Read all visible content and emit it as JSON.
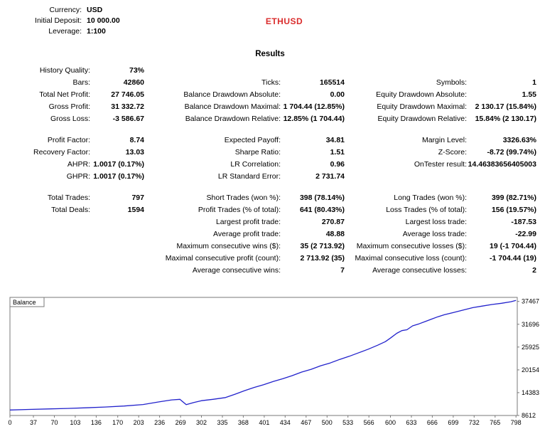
{
  "header": {
    "currency_label": "Currency:",
    "currency_value": "USD",
    "deposit_label": "Initial Deposit:",
    "deposit_value": "10 000.00",
    "leverage_label": "Leverage:",
    "leverage_value": "1:100",
    "symbol": "ETHUSD"
  },
  "results_title": "Results",
  "colors": {
    "symbol_red": "#da2c2c",
    "line_blue": "#2222cc"
  },
  "stats": {
    "rows": [
      [
        "History Quality:",
        "73%",
        "",
        "",
        "",
        ""
      ],
      [
        "Bars:",
        "42860",
        "Ticks:",
        "165514",
        "Symbols:",
        "1"
      ],
      [
        "Total Net Profit:",
        "27 746.05",
        "Balance Drawdown Absolute:",
        "0.00",
        "Equity Drawdown Absolute:",
        "1.55"
      ],
      [
        "Gross Profit:",
        "31 332.72",
        "Balance Drawdown Maximal:",
        "1 704.44 (12.85%)",
        "Equity Drawdown Maximal:",
        "2 130.17 (15.84%)"
      ],
      [
        "Gross Loss:",
        "-3 586.67",
        "Balance Drawdown Relative:",
        "12.85% (1 704.44)",
        "Equity Drawdown Relative:",
        "15.84% (2 130.17)"
      ],
      [
        "",
        "",
        "",
        "",
        "",
        ""
      ],
      [
        "Profit Factor:",
        "8.74",
        "Expected Payoff:",
        "34.81",
        "Margin Level:",
        "3326.63%"
      ],
      [
        "Recovery Factor:",
        "13.03",
        "Sharpe Ratio:",
        "1.51",
        "Z-Score:",
        "-8.72 (99.74%)"
      ],
      [
        "AHPR:",
        "1.0017 (0.17%)",
        "LR Correlation:",
        "0.96",
        "OnTester result:",
        "14.46383656405003"
      ],
      [
        "GHPR:",
        "1.0017 (0.17%)",
        "LR Standard Error:",
        "2 731.74",
        "",
        ""
      ],
      [
        "",
        "",
        "",
        "",
        "",
        ""
      ],
      [
        "Total Trades:",
        "797",
        "Short Trades (won %):",
        "398 (78.14%)",
        "Long Trades (won %):",
        "399 (82.71%)"
      ],
      [
        "Total Deals:",
        "1594",
        "Profit Trades (% of total):",
        "641 (80.43%)",
        "Loss Trades (% of total):",
        "156 (19.57%)"
      ],
      [
        "",
        "",
        "Largest profit trade:",
        "270.87",
        "Largest loss trade:",
        "-187.53"
      ],
      [
        "",
        "",
        "Average profit trade:",
        "48.88",
        "Average loss trade:",
        "-22.99"
      ],
      [
        "",
        "",
        "Maximum consecutive wins ($):",
        "35 (2 713.92)",
        "Maximum consecutive losses ($):",
        "19 (-1 704.44)"
      ],
      [
        "",
        "",
        "Maximal consecutive profit (count):",
        "2 713.92 (35)",
        "Maximal consecutive loss (count):",
        "-1 704.44 (19)"
      ],
      [
        "",
        "",
        "Average consecutive wins:",
        "7",
        "Average consecutive losses:",
        "2"
      ]
    ]
  },
  "chart_data": {
    "type": "line",
    "title": "Balance",
    "xlabel": "",
    "ylabel": "",
    "legend": false,
    "grid": false,
    "xlim": [
      0,
      800
    ],
    "ylim": [
      8612,
      38500
    ],
    "x_ticks": [
      0,
      37,
      70,
      103,
      136,
      170,
      203,
      236,
      269,
      302,
      335,
      368,
      401,
      434,
      467,
      500,
      533,
      566,
      600,
      633,
      666,
      699,
      732,
      765,
      798
    ],
    "y_ticks": [
      8612,
      14383,
      20154,
      25925,
      31696,
      37467
    ],
    "series": [
      {
        "name": "Balance",
        "color": "#2222cc",
        "points": [
          [
            0,
            10000
          ],
          [
            30,
            10140
          ],
          [
            60,
            10270
          ],
          [
            90,
            10400
          ],
          [
            120,
            10560
          ],
          [
            150,
            10760
          ],
          [
            180,
            11000
          ],
          [
            210,
            11380
          ],
          [
            235,
            12050
          ],
          [
            255,
            12550
          ],
          [
            268,
            12700
          ],
          [
            278,
            11350
          ],
          [
            290,
            11900
          ],
          [
            302,
            12350
          ],
          [
            320,
            12700
          ],
          [
            340,
            13150
          ],
          [
            355,
            14000
          ],
          [
            370,
            14900
          ],
          [
            385,
            15700
          ],
          [
            400,
            16400
          ],
          [
            415,
            17200
          ],
          [
            430,
            17900
          ],
          [
            445,
            18700
          ],
          [
            460,
            19600
          ],
          [
            475,
            20300
          ],
          [
            490,
            21200
          ],
          [
            505,
            21900
          ],
          [
            520,
            22800
          ],
          [
            535,
            23600
          ],
          [
            550,
            24500
          ],
          [
            565,
            25400
          ],
          [
            580,
            26400
          ],
          [
            592,
            27300
          ],
          [
            600,
            28200
          ],
          [
            610,
            29400
          ],
          [
            618,
            30100
          ],
          [
            626,
            30300
          ],
          [
            635,
            31300
          ],
          [
            645,
            31800
          ],
          [
            655,
            32400
          ],
          [
            665,
            33000
          ],
          [
            675,
            33600
          ],
          [
            685,
            34100
          ],
          [
            700,
            34700
          ],
          [
            715,
            35300
          ],
          [
            730,
            35900
          ],
          [
            745,
            36300
          ],
          [
            760,
            36700
          ],
          [
            775,
            37000
          ],
          [
            790,
            37400
          ],
          [
            798,
            37746
          ]
        ]
      }
    ]
  }
}
